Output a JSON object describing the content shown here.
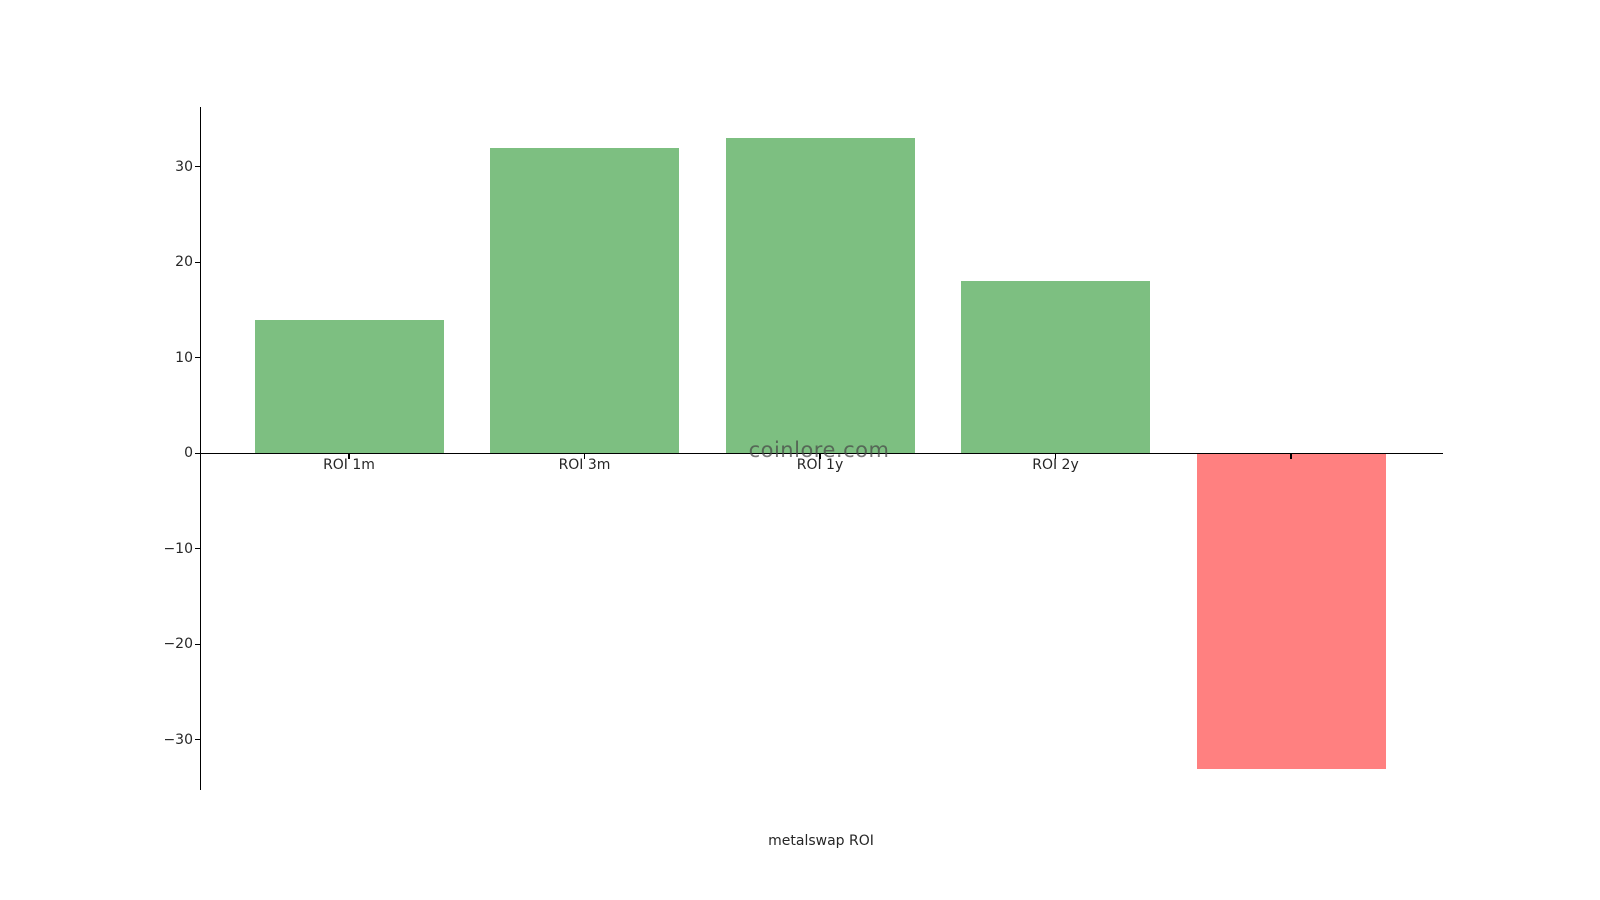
{
  "watermark": "coinlore.com",
  "colors": {
    "positive_bar": "#7dbf81",
    "negative_bar": "#ff8080",
    "axis": "#000000",
    "tick_text": "#262626",
    "watermark_text": "#464646",
    "background": "#ffffff"
  },
  "chart_data": {
    "type": "bar",
    "title": "",
    "xlabel": "metalswap ROI",
    "ylabel": "",
    "categories": [
      "ROI 1m",
      "ROI 3m",
      "ROI 1y",
      "ROI 2y",
      ""
    ],
    "values": [
      14,
      32,
      33,
      18,
      -33
    ],
    "bar_colors": [
      "#7dbf81",
      "#7dbf81",
      "#7dbf81",
      "#7dbf81",
      "#ff8080"
    ],
    "ytick_values": [
      30,
      20,
      10,
      0,
      -10,
      -20,
      -30
    ],
    "ytick_labels": [
      "30",
      "20",
      "10",
      "0",
      "−10",
      "−20",
      "−30"
    ],
    "ylim": [
      -35.5,
      36.3
    ],
    "grid": false,
    "legend_position": "none",
    "annotations": [
      "coinlore.com"
    ]
  }
}
